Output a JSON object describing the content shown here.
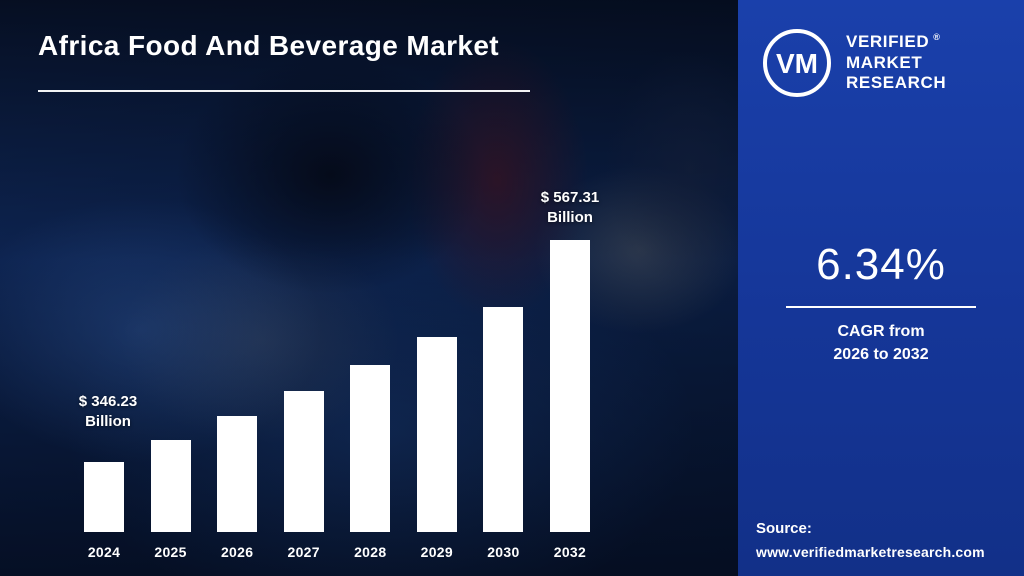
{
  "title": "Africa Food And Beverage Market",
  "logo": {
    "monogram": "VM",
    "lines": [
      "VERIFIED",
      "MARKET",
      "RESEARCH"
    ],
    "registered": "®"
  },
  "panel": {
    "cagr_value": "6.34%",
    "caption_line1": "CAGR from",
    "caption_line2": "2026 to 2032",
    "source_label": "Source:",
    "source_url": "www.verifiedmarketresearch.com"
  },
  "chart_data": {
    "type": "bar",
    "title": "Africa Food And Beverage Market",
    "unit": "USD Billion",
    "categories": [
      "2024",
      "2025",
      "2026",
      "2027",
      "2028",
      "2029",
      "2030",
      "2032"
    ],
    "values": [
      346.23,
      368.2,
      391.5,
      416.3,
      442.7,
      470.8,
      500.6,
      567.31
    ],
    "bar_color": "#ffffff",
    "ylim": [
      276,
      600
    ],
    "grid": false,
    "legend": "none",
    "cagr_percent": 6.34,
    "cagr_period": "2026 to 2032",
    "annotations": [
      {
        "category": "2024",
        "line1": "$ 346.23",
        "line2": "Billion"
      },
      {
        "category": "2032",
        "line1": "$ 567.31",
        "line2": "Billion"
      }
    ]
  },
  "colors": {
    "left_bg": "#0b2049",
    "panel_bg": "#163a9c",
    "bar": "#ffffff",
    "text": "#ffffff"
  }
}
